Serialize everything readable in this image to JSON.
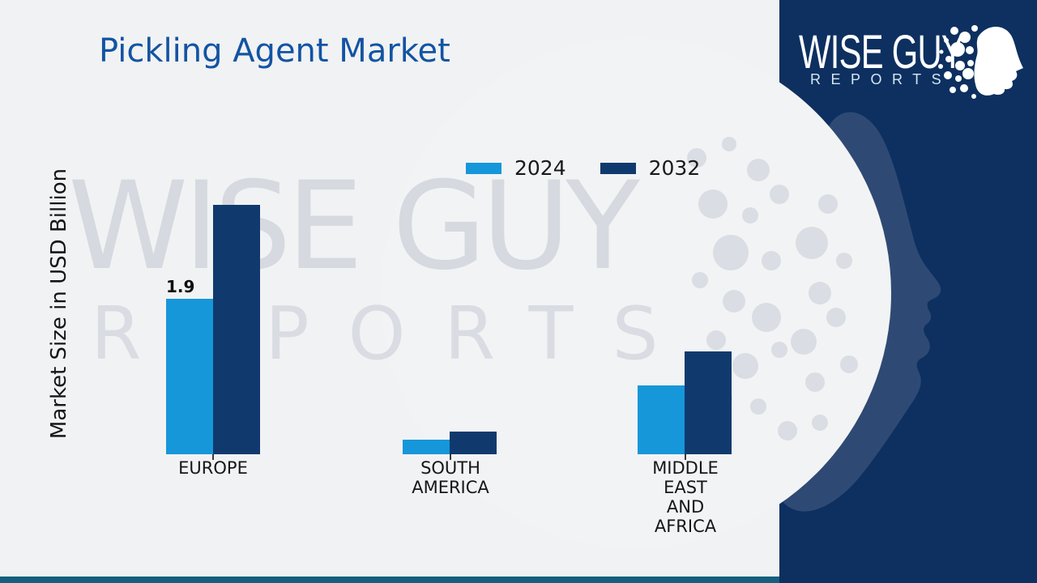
{
  "header": {
    "title": "Pickling Agent Market"
  },
  "logo": {
    "brand": "WISE GUY",
    "sub": "REPORTS"
  },
  "watermark": {
    "brand": "WISE GUY",
    "sub": "REPORTS"
  },
  "colors": {
    "title_blue": "#1254a3",
    "bar_2024": "#1697da",
    "bar_2032": "#103a6e",
    "right_panel_navy": "#0d3060",
    "face_silhouette_navy": "#2e4a74",
    "bottom_accent_teal": "#15607f",
    "background": "#f1f2f3",
    "watermark_gray": "#d6d9df"
  },
  "chart_data": {
    "type": "bar",
    "title": "Pickling Agent Market",
    "xlabel": "",
    "ylabel": "Market Size in USD Billion",
    "unit": "USD Billion",
    "categories": [
      "EUROPE",
      "SOUTH AMERICA",
      "MIDDLE EAST AND AFRICA"
    ],
    "category_lines": [
      [
        "EUROPE"
      ],
      [
        "SOUTH",
        "AMERICA"
      ],
      [
        "MIDDLE",
        "EAST",
        "AND",
        "AFRICA"
      ]
    ],
    "series": [
      {
        "name": "2024",
        "color": "#1697da",
        "values": [
          1.9,
          0.18,
          0.84
        ]
      },
      {
        "name": "2032",
        "color": "#103a6e",
        "values": [
          3.05,
          0.28,
          1.26
        ]
      }
    ],
    "annotations": [
      {
        "series": "2024",
        "category": "EUROPE",
        "text": "1.9"
      }
    ],
    "ylim": [
      0,
      3.2
    ],
    "grid": false,
    "axis_lines": false,
    "legend_position": "top-center"
  }
}
